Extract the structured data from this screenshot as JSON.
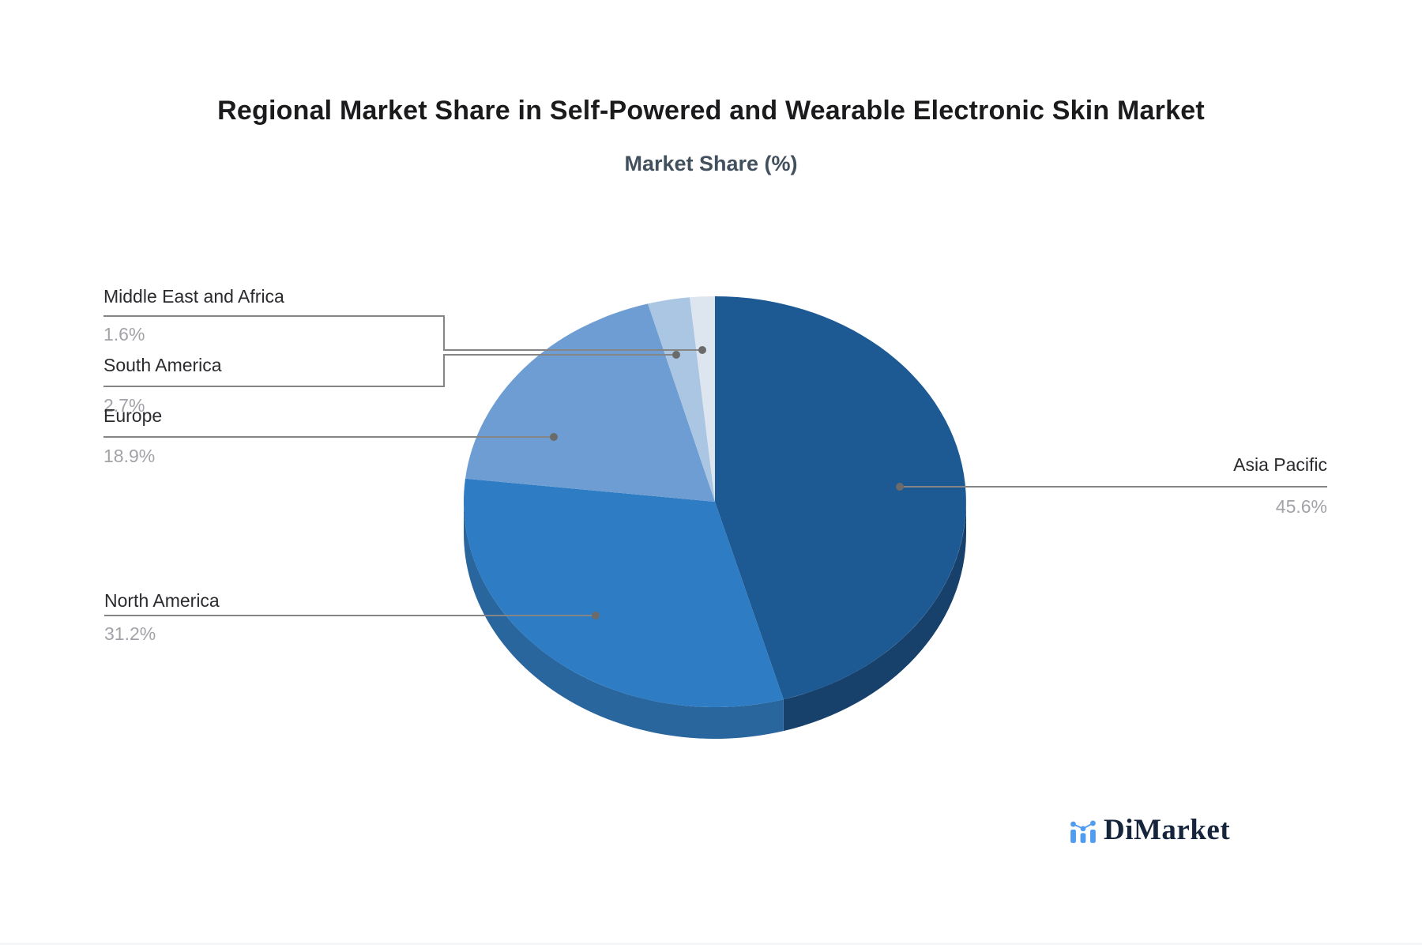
{
  "title": "Regional Market Share in Self-Powered and Wearable Electronic Skin Market",
  "subtitle": "Market Share (%)",
  "logo": {
    "text": "DiMarket"
  },
  "chart_data": {
    "type": "pie",
    "title": "Regional Market Share in Self-Powered and Wearable Electronic Skin Market",
    "value_label": "Market Share (%)",
    "unit": "%",
    "effect_3d": true,
    "start_angle_deg": -90,
    "direction": "clockwise",
    "legend_position": "callout-labels",
    "slices": [
      {
        "label": "Asia Pacific",
        "value": 45.6,
        "display": "45.6%",
        "color": "#1d5a94",
        "shade": "#17406b"
      },
      {
        "label": "North America",
        "value": 31.2,
        "display": "31.2%",
        "color": "#2e7dc4",
        "shade": "#2a669e"
      },
      {
        "label": "Europe",
        "value": 18.9,
        "display": "18.9%",
        "color": "#6d9dd2",
        "shade": "#567fae"
      },
      {
        "label": "South America",
        "value": 2.7,
        "display": "2.7%",
        "color": "#abc6e2",
        "shade": "#8aa6c4"
      },
      {
        "label": "Middle East and Africa",
        "value": 1.6,
        "display": "1.6%",
        "color": "#dde5ee",
        "shade": "#b4c2d4"
      }
    ],
    "callout_line_color": "#858585",
    "callout_dot_color": "#6b6b6b"
  }
}
